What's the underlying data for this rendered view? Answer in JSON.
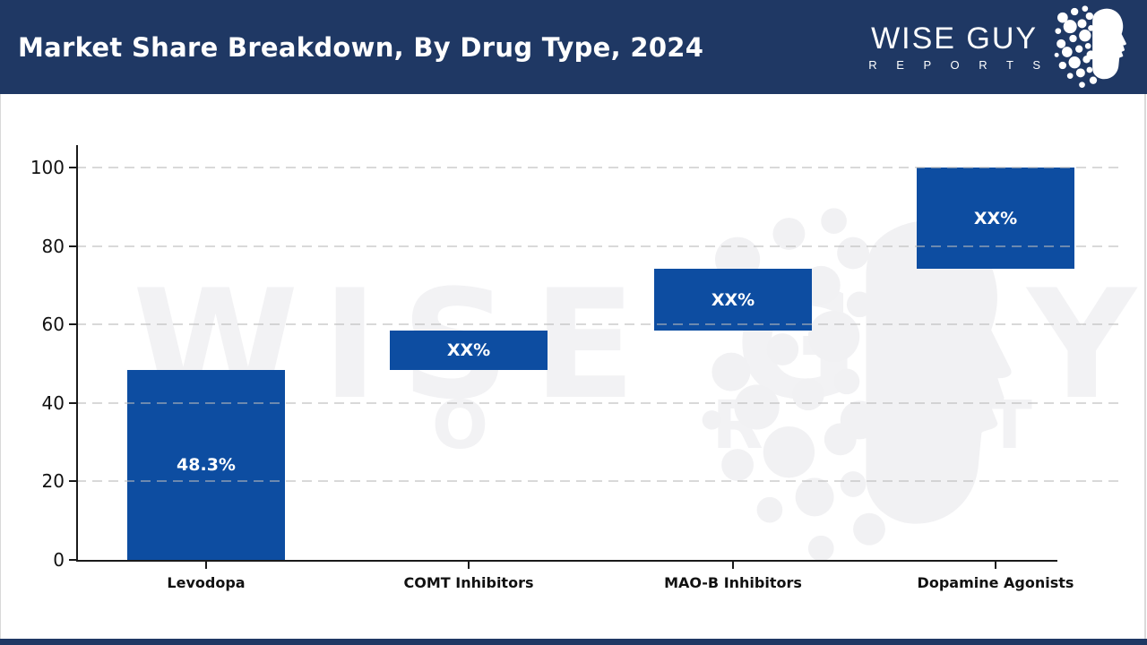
{
  "header": {
    "title": "Market Share Breakdown, By Drug Type, 2024",
    "bg_color": "#1F3864",
    "logo": {
      "line1": "WISE GUY",
      "line2": "R E P O R T S"
    }
  },
  "watermark": {
    "line1": "WISE GUY",
    "line2": "P O R T S"
  },
  "chart_data": {
    "type": "bar",
    "subtype": "waterfall",
    "title": "Market Share Breakdown, By Drug Type, 2024",
    "categories": [
      "Levodopa",
      "COMT Inhibitors",
      "MAO-B Inhibitors",
      "Dopamine Agonists"
    ],
    "segments": [
      {
        "category": "Levodopa",
        "start": 0,
        "end": 48.3,
        "label": "48.3%"
      },
      {
        "category": "COMT Inhibitors",
        "start": 48.3,
        "end": 58.5,
        "label": "XX%"
      },
      {
        "category": "MAO-B Inhibitors",
        "start": 58.5,
        "end": 74.1,
        "label": "XX%"
      },
      {
        "category": "Dopamine Agonists",
        "start": 74.1,
        "end": 100,
        "label": "XX%"
      }
    ],
    "xlabel": "",
    "ylabel": "",
    "ylim": [
      0,
      100
    ],
    "yticks": [
      0,
      20,
      40,
      60,
      80,
      100
    ],
    "grid": "horizontal-dashed",
    "legend": "none",
    "colors": {
      "bar": "#0D4DA1",
      "grid": "#bababa",
      "axis": "#1a1a1a"
    }
  }
}
